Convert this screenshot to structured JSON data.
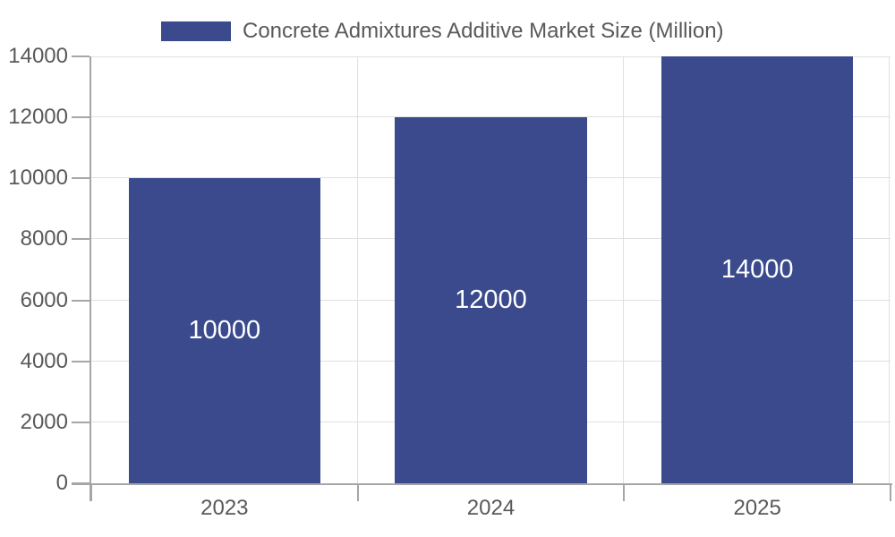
{
  "chart_data": {
    "type": "bar",
    "title": "Concrete Admixtures Additive Market Size (Million)",
    "categories": [
      "2023",
      "2024",
      "2025"
    ],
    "values": [
      10000,
      12000,
      14000
    ],
    "bar_value_labels": [
      "10000",
      "12000",
      "14000"
    ],
    "ylim": [
      0,
      14000
    ],
    "yticks": [
      0,
      2000,
      4000,
      6000,
      8000,
      10000,
      12000,
      14000
    ],
    "xlabel": "",
    "ylabel": "",
    "grid": true,
    "legend_position": "top-center",
    "bar_labels_inside_centered": true,
    "colors": {
      "bar": "#3A4A8C",
      "bar_label": "#FFFFFF",
      "grid_line": "#E0E0E0",
      "axis_line": "#A6A6A6",
      "tick_text": "#595959",
      "title_text": "#595959",
      "background": "#FFFFFF"
    }
  }
}
